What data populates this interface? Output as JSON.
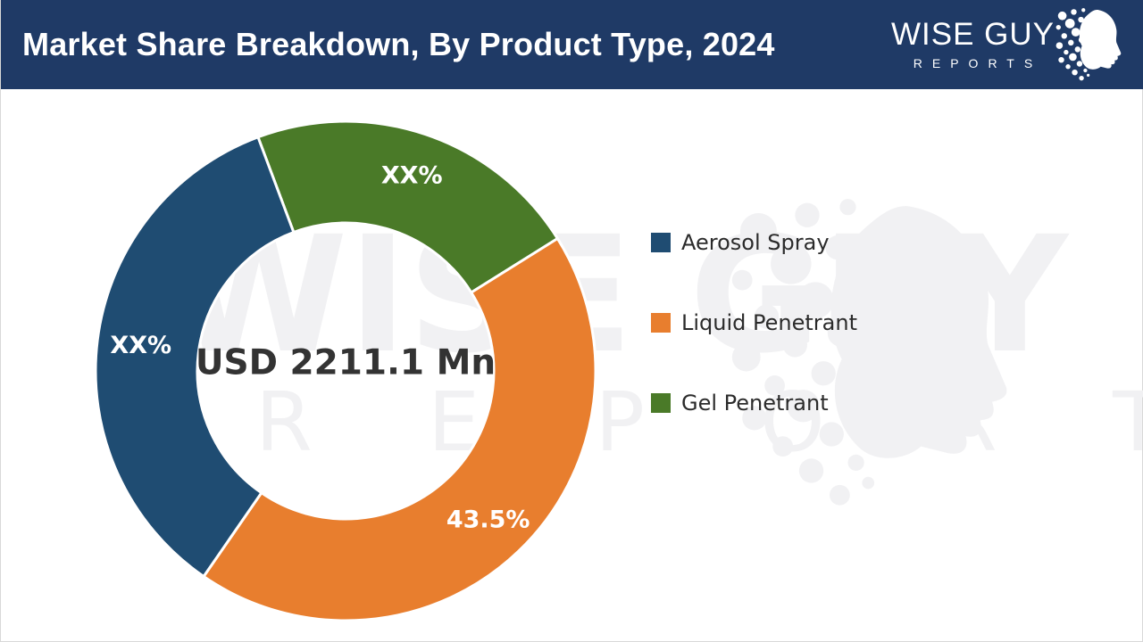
{
  "header": {
    "title": "Market Share Breakdown, By Product Type, 2024",
    "background_color": "#1f3a66",
    "logo": {
      "name": "WISE GUY",
      "tagline": "REPORTS"
    }
  },
  "watermark": {
    "line1": "WISE GUY",
    "line2": "R E P O R T S",
    "color": "#f1f1f3"
  },
  "chart_data": {
    "type": "pie",
    "subtype": "donut",
    "title": "Market Share Breakdown, By Product Type, 2024",
    "center_label": "USD 2211.1 Mn",
    "start_angle_deg": -20.5,
    "direction": "clockwise",
    "slices": [
      {
        "name": "Gel Penetrant",
        "value": 21.8,
        "display_label": "XX%",
        "color": "#4a7a28"
      },
      {
        "name": "Liquid Penetrant",
        "value": 43.5,
        "display_label": "43.5%",
        "color": "#e87e2e"
      },
      {
        "name": "Aerosol Spray",
        "value": 34.7,
        "display_label": "XX%",
        "color": "#1f4c72"
      }
    ],
    "legend": {
      "position": "right",
      "items": [
        {
          "label": "Aerosol Spray",
          "color": "#1f4c72"
        },
        {
          "label": "Liquid Penetrant",
          "color": "#e87e2e"
        },
        {
          "label": "Gel Penetrant",
          "color": "#4a7a28"
        }
      ]
    }
  }
}
